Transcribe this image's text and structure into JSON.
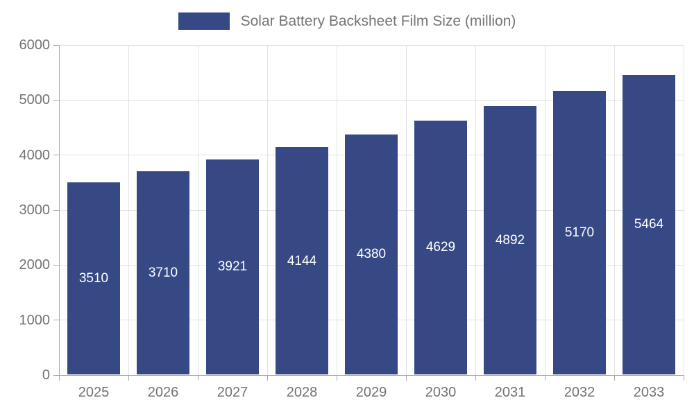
{
  "legend": {
    "label": "Solar Battery Backsheet Film Size (million)"
  },
  "chart_data": {
    "type": "bar",
    "title": "",
    "xlabel": "",
    "ylabel": "",
    "categories": [
      "2025",
      "2026",
      "2027",
      "2028",
      "2029",
      "2030",
      "2031",
      "2032",
      "2033"
    ],
    "values": [
      3510,
      3710,
      3921,
      4144,
      4380,
      4629,
      4892,
      5170,
      5464
    ],
    "series_name": "Solar Battery Backsheet Film Size (million)",
    "ylim": [
      0,
      6000
    ],
    "yticks": [
      0,
      1000,
      2000,
      3000,
      4000,
      5000,
      6000
    ],
    "ytick_labels": [
      "0",
      "1000",
      "2000",
      "3000",
      "4000",
      "5000",
      "6000"
    ],
    "grid": true,
    "legend_position": "top-center",
    "value_labels": "inside-center"
  },
  "colors": {
    "bar": "#364985",
    "bar_label": "#ffffff",
    "axis_text": "#737373",
    "gridline": "#e2e2e2",
    "axis_line": "#ababab",
    "legend_text": "#757575"
  }
}
